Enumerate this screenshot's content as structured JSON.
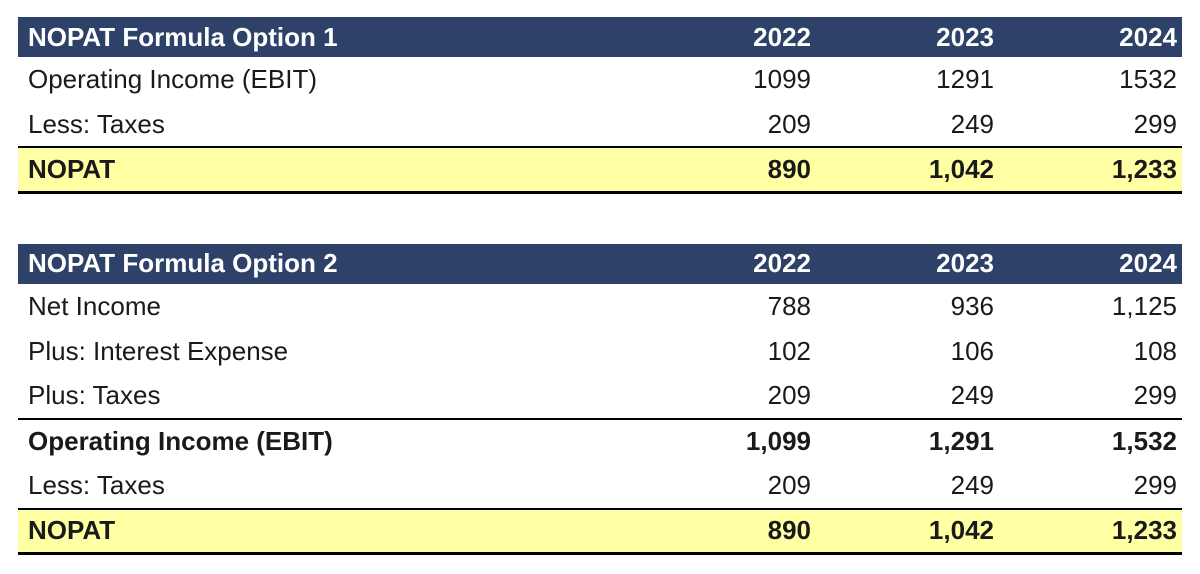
{
  "colors": {
    "header_bg": "#2E4168",
    "header_text": "#FFFFFF",
    "total_bg": "#FFFFA3",
    "body_text": "#1A1A1A",
    "border": "#000000",
    "page_bg": "#FFFFFF"
  },
  "tables": [
    {
      "title": "NOPAT Formula Option 1",
      "years": [
        "2022",
        "2023",
        "2024"
      ],
      "rows": [
        {
          "label": "Operating Income (EBIT)",
          "values": [
            "1099",
            "1291",
            "1532"
          ],
          "style": "normal"
        },
        {
          "label": "Less: Taxes",
          "values": [
            "209",
            "249",
            "299"
          ],
          "style": "normal"
        },
        {
          "label": "NOPAT",
          "values": [
            "890",
            "1,042",
            "1,233"
          ],
          "style": "total"
        }
      ]
    },
    {
      "title": "NOPAT Formula Option 2",
      "years": [
        "2022",
        "2023",
        "2024"
      ],
      "rows": [
        {
          "label": "Net Income",
          "values": [
            "788",
            "936",
            "1,125"
          ],
          "style": "normal"
        },
        {
          "label": "Plus: Interest Expense",
          "values": [
            "102",
            "106",
            "108"
          ],
          "style": "normal"
        },
        {
          "label": "Plus: Taxes",
          "values": [
            "209",
            "249",
            "299"
          ],
          "style": "normal"
        },
        {
          "label": "Operating Income (EBIT)",
          "values": [
            "1,099",
            "1,291",
            "1,532"
          ],
          "style": "subtotal"
        },
        {
          "label": "Less: Taxes",
          "values": [
            "209",
            "249",
            "299"
          ],
          "style": "normal"
        },
        {
          "label": "NOPAT",
          "values": [
            "890",
            "1,042",
            "1,233"
          ],
          "style": "total"
        }
      ]
    }
  ]
}
